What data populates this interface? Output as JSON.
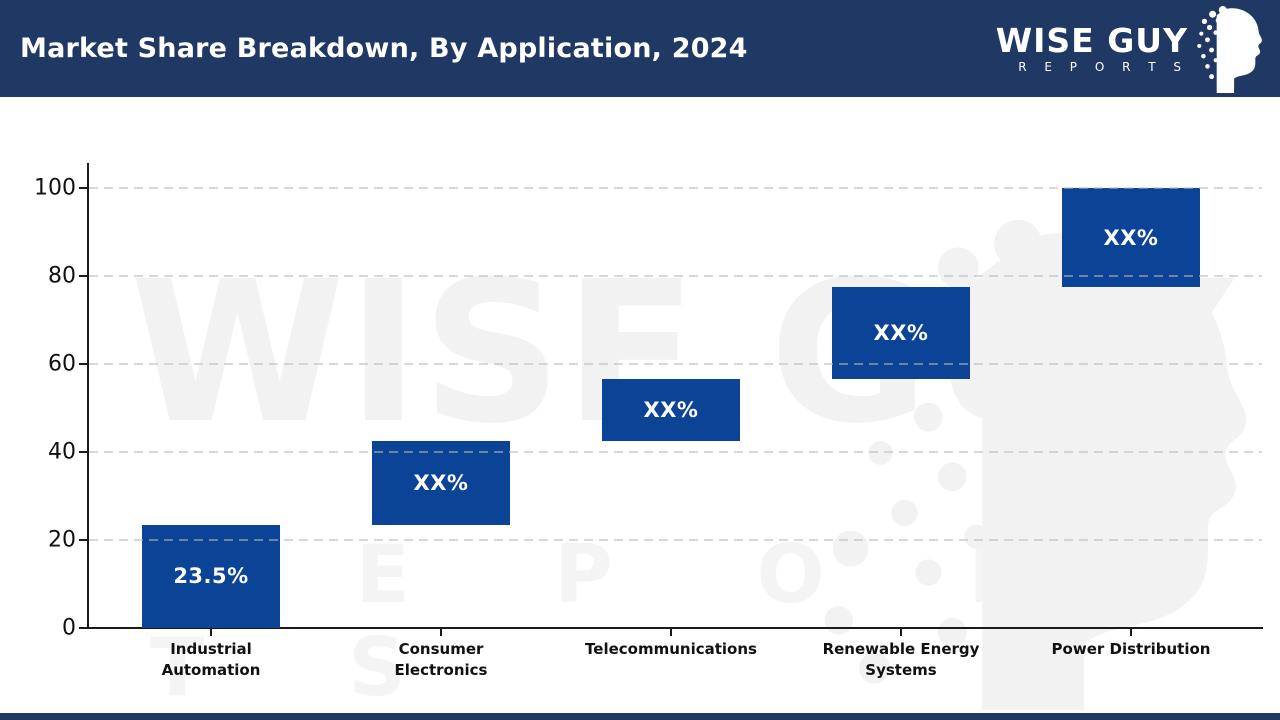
{
  "header": {
    "title": "Market Share Breakdown, By Application, 2024",
    "bg_color": "#203864",
    "logo_line1": "WISE GUY",
    "logo_line2": "R E P O R T S"
  },
  "watermark": {
    "line1": "WISE GUY",
    "line2": "R E P O R T S"
  },
  "chart_data": {
    "type": "bar",
    "subtype": "waterfall",
    "title": "Market Share Breakdown, By Application, 2024",
    "categories": [
      "Industrial\nAutomation",
      "Consumer\nElectronics",
      "Telecommunications",
      "Renewable Energy\nSystems",
      "Power Distribution"
    ],
    "segments": [
      {
        "category": "Industrial Automation",
        "start": 0,
        "end": 23.5,
        "label": "23.5%"
      },
      {
        "category": "Consumer Electronics",
        "start": 23.5,
        "end": 42.5,
        "label": "XX%"
      },
      {
        "category": "Telecommunications",
        "start": 42.5,
        "end": 56.5,
        "label": "XX%"
      },
      {
        "category": "Renewable Energy Systems",
        "start": 56.5,
        "end": 77.5,
        "label": "XX%"
      },
      {
        "category": "Power Distribution",
        "start": 77.5,
        "end": 100,
        "label": "XX%"
      }
    ],
    "yticks": [
      0,
      20,
      40,
      60,
      80,
      100
    ],
    "ylim": [
      0,
      105
    ],
    "xlabel": "",
    "ylabel": "",
    "grid": "horizontal-dashed",
    "legend": "none",
    "bar_color": "#0b4397",
    "bar_label_color": "#ffffff",
    "axis_color": "#1a1a1a",
    "gridline_color": "#d9d9d9"
  }
}
